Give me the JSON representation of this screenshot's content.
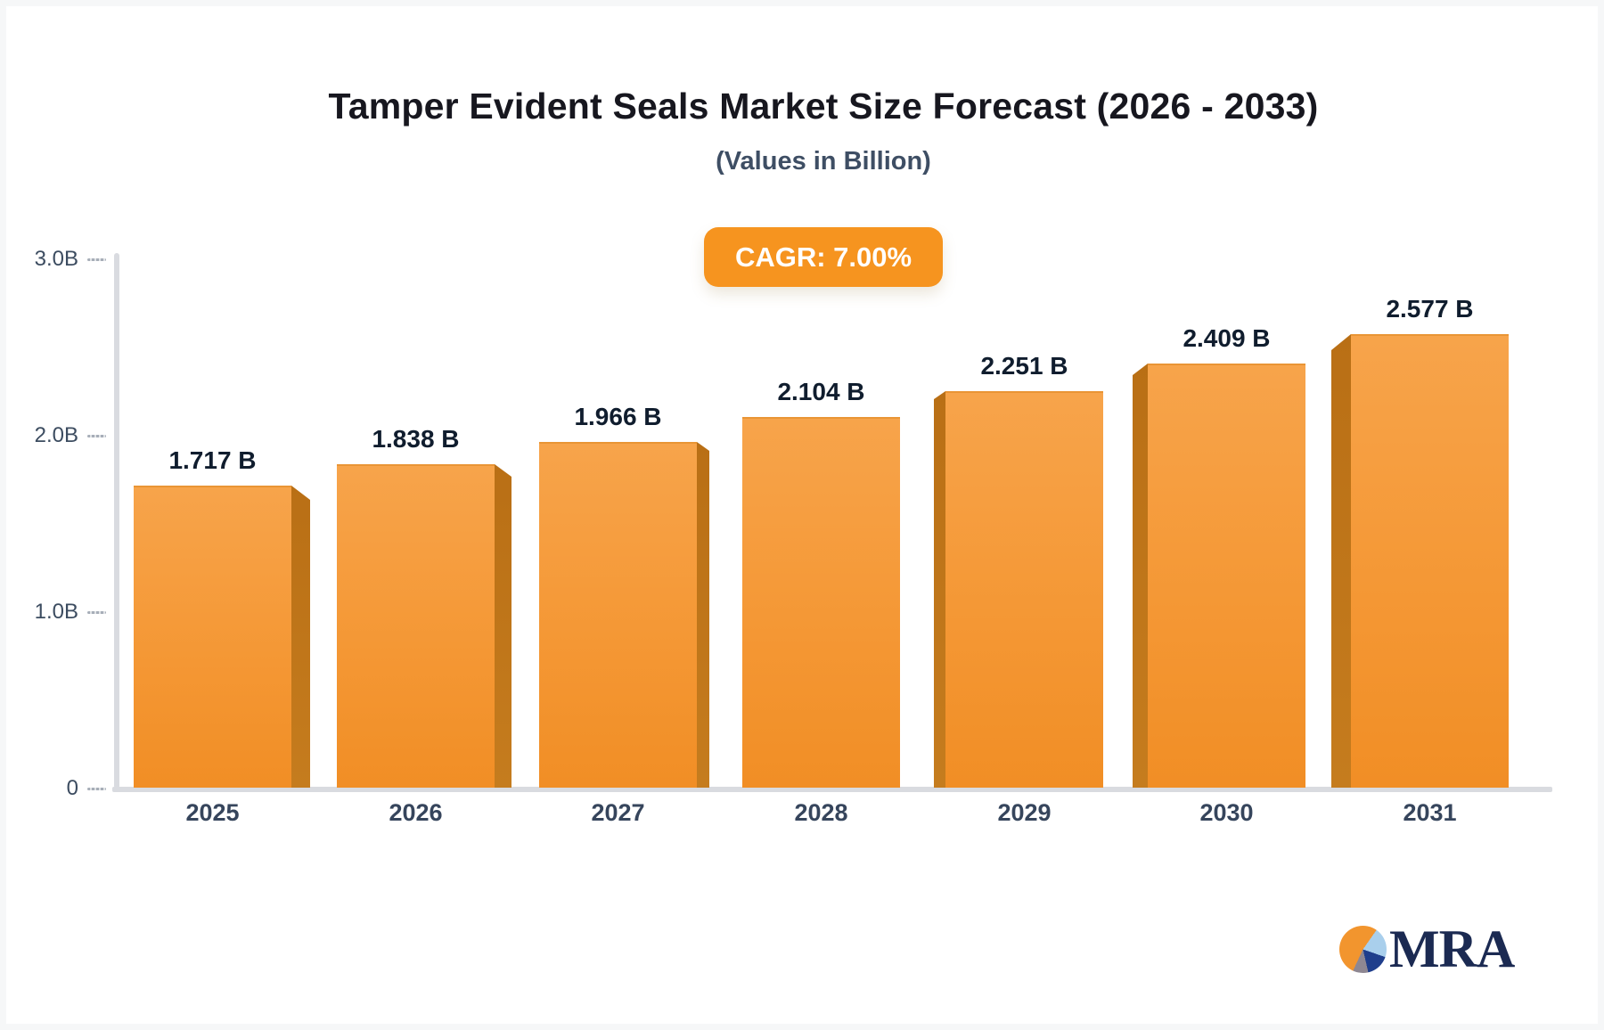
{
  "header": {
    "title": "Tamper Evident Seals Market Size Forecast (2026 - 2033)",
    "subtitle": "(Values in Billion)"
  },
  "badge": {
    "label": "CAGR: 7.00%",
    "bg": "#f6941f"
  },
  "chart_data": {
    "type": "bar",
    "title": "Tamper Evident Seals Market Size Forecast (2026 - 2033)",
    "subtitle": "(Values in Billion)",
    "unit": "Billion",
    "cagr": "7.00%",
    "categories": [
      "2025",
      "2026",
      "2027",
      "2028",
      "2029",
      "2030",
      "2031"
    ],
    "values": [
      1.717,
      1.838,
      1.966,
      2.104,
      2.251,
      2.409,
      2.577
    ],
    "value_labels": [
      "1.717 B",
      "1.838 B",
      "1.966 B",
      "2.104 B",
      "2.251 B",
      "2.409 B",
      "2.577 B"
    ],
    "ylim": [
      0,
      3.0
    ],
    "yticks": [
      "3.0B",
      "2.0B",
      "1.0B",
      "0"
    ],
    "grid": false,
    "legend": false,
    "bar_color_top": "#f7a44b",
    "bar_color_bottom": "#f18e25",
    "bar_side_color": "#bb7017",
    "axis_color": "#d9dbe0"
  },
  "logo": {
    "text": "MRA"
  }
}
